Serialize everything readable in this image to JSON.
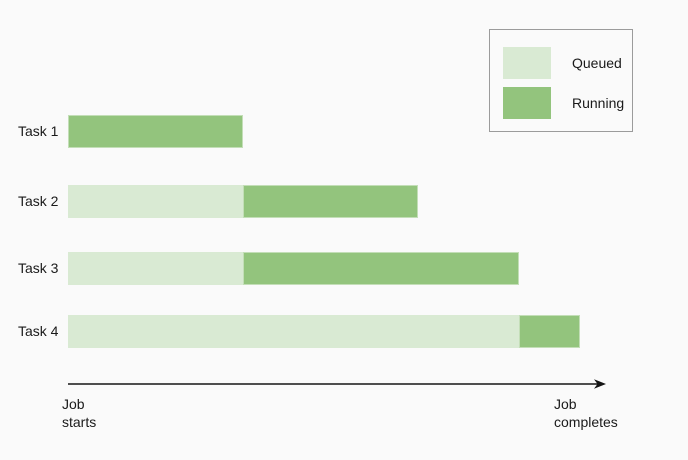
{
  "page": {
    "background_color": "#fafafa",
    "text_color": "#1a1a1a"
  },
  "legend": {
    "border_color": "#9b9b9b",
    "items": [
      {
        "label": "Queued",
        "color": "#d9ead3"
      },
      {
        "label": "Running",
        "color": "#93c47d"
      }
    ]
  },
  "axis": {
    "start_label": "Job\nstarts",
    "end_label": "Job\ncompletes",
    "arrow_color": "#141414"
  },
  "chart_data": {
    "type": "bar",
    "subtype": "horizontal_stacked_gantt_timeline",
    "title": "",
    "xlabel": "",
    "ylabel": "",
    "categories": [
      "Task 1",
      "Task 2",
      "Task 3",
      "Task 4"
    ],
    "series": [
      {
        "name": "Queued",
        "color": "#d9ead3",
        "values_pct_of_timeline": [
          0,
          34.18,
          34.18,
          88.09
        ]
      },
      {
        "name": "Running",
        "color": "#93c47d",
        "values_pct_of_timeline": [
          34.18,
          34.18,
          53.91,
          11.91
        ]
      }
    ],
    "task_totals_pct_of_timeline": [
      34.18,
      68.36,
      88.09,
      100
    ],
    "x_axis": {
      "start_label": "Job starts",
      "end_label": "Job completes",
      "ticks": [],
      "grid": false,
      "style": "single arrow from job start to job completion"
    },
    "legend_position": "top-right",
    "orientation": "horizontal"
  }
}
